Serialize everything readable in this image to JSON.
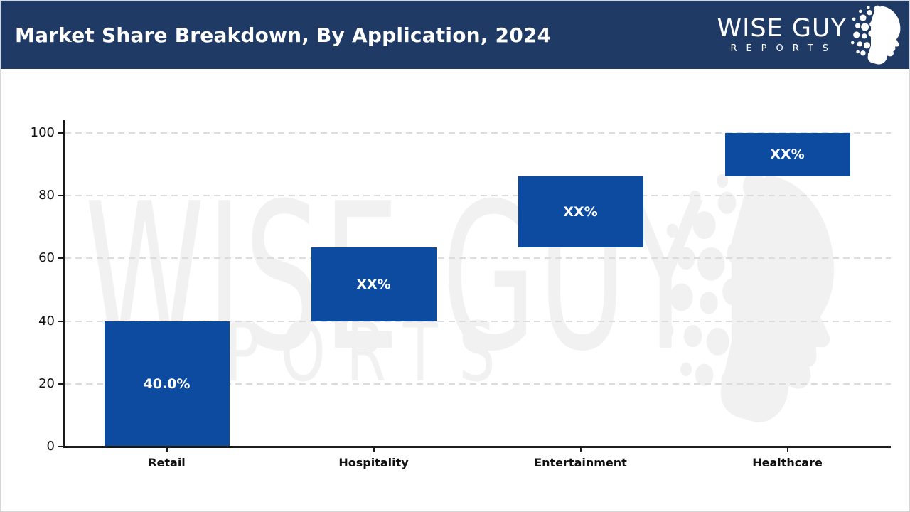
{
  "header": {
    "title": "Market Share Breakdown, By Application, 2024",
    "logo": {
      "wordmark": "WISE GUY",
      "subtext": "REPORTS",
      "face_icon": "dotted-head-profile"
    }
  },
  "watermark": {
    "wordmark": "WISE GUY",
    "subtext": "REPORTS",
    "face_icon": "dotted-head-profile"
  },
  "colors": {
    "header_bg": "#203a66",
    "bar": "#0c4ba0",
    "grid": "#dcdcdc",
    "axis": "#1a1a1a",
    "bar_label_text": "#ffffff",
    "watermark": "#f1f1f2"
  },
  "chart_data": {
    "type": "bar",
    "subtype": "waterfall-stacked",
    "title": "Market Share Breakdown, By Application, 2024",
    "categories": [
      "Retail",
      "Hospitality",
      "Entertainment",
      "Healthcare"
    ],
    "segments": [
      {
        "category": "Retail",
        "start": 0,
        "end": 40,
        "label": "40.0%"
      },
      {
        "category": "Hospitality",
        "start": 40,
        "end": 63.5,
        "label": "XX%"
      },
      {
        "category": "Entertainment",
        "start": 63.5,
        "end": 86.2,
        "label": "XX%"
      },
      {
        "category": "Healthcare",
        "start": 86.2,
        "end": 100,
        "label": "XX%"
      }
    ],
    "y_ticks": [
      0,
      20,
      40,
      60,
      80,
      100
    ],
    "ylim": [
      0,
      104
    ],
    "xlabel": "",
    "ylabel": "",
    "grid": "horizontal-dashed",
    "legend": "none"
  }
}
